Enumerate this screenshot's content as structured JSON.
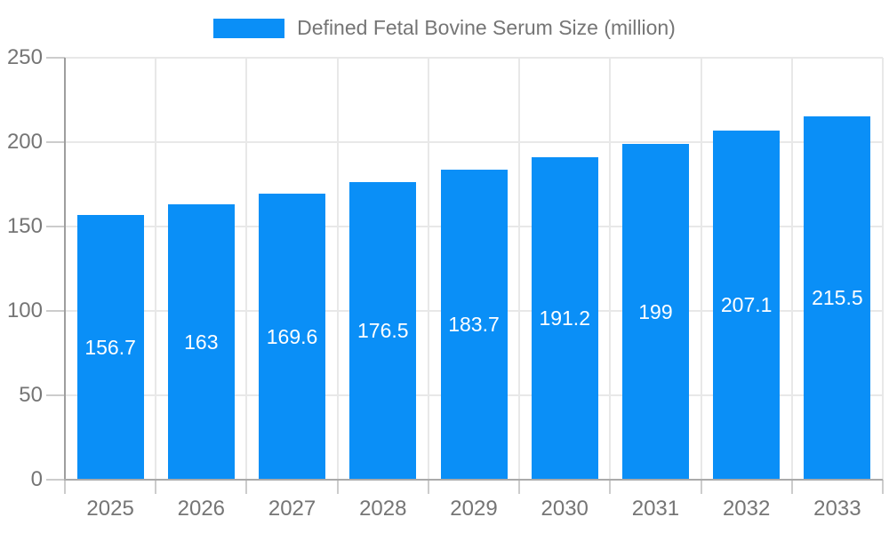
{
  "legend": {
    "label": "Defined Fetal Bovine Serum Size (million)"
  },
  "colors": {
    "bar": "#0a8ff7",
    "axis_line": "#9e9e9e",
    "baseline": "#aaaaaa",
    "grid": "#e8e8e8",
    "tick": "#cccccc",
    "axis_text": "#757575",
    "legend_text": "#757575",
    "value_text": "#ffffff",
    "background": "#ffffff"
  },
  "chart_data": {
    "type": "bar",
    "title": "Defined Fetal Bovine Serum Size (million)",
    "categories": [
      "2025",
      "2026",
      "2027",
      "2028",
      "2029",
      "2030",
      "2031",
      "2032",
      "2033"
    ],
    "values": [
      156.7,
      163,
      169.6,
      176.5,
      183.7,
      191.2,
      199,
      207.1,
      215.5
    ],
    "value_labels": [
      "156.7",
      "163",
      "169.6",
      "176.5",
      "183.7",
      "191.2",
      "199",
      "207.1",
      "215.5"
    ],
    "xlabel": "",
    "ylabel": "",
    "ylim": [
      0,
      250
    ],
    "yticks": [
      0,
      50,
      100,
      150,
      200,
      250
    ],
    "grid": true,
    "legend_position": "top",
    "value_label_position": "center-of-bar"
  }
}
